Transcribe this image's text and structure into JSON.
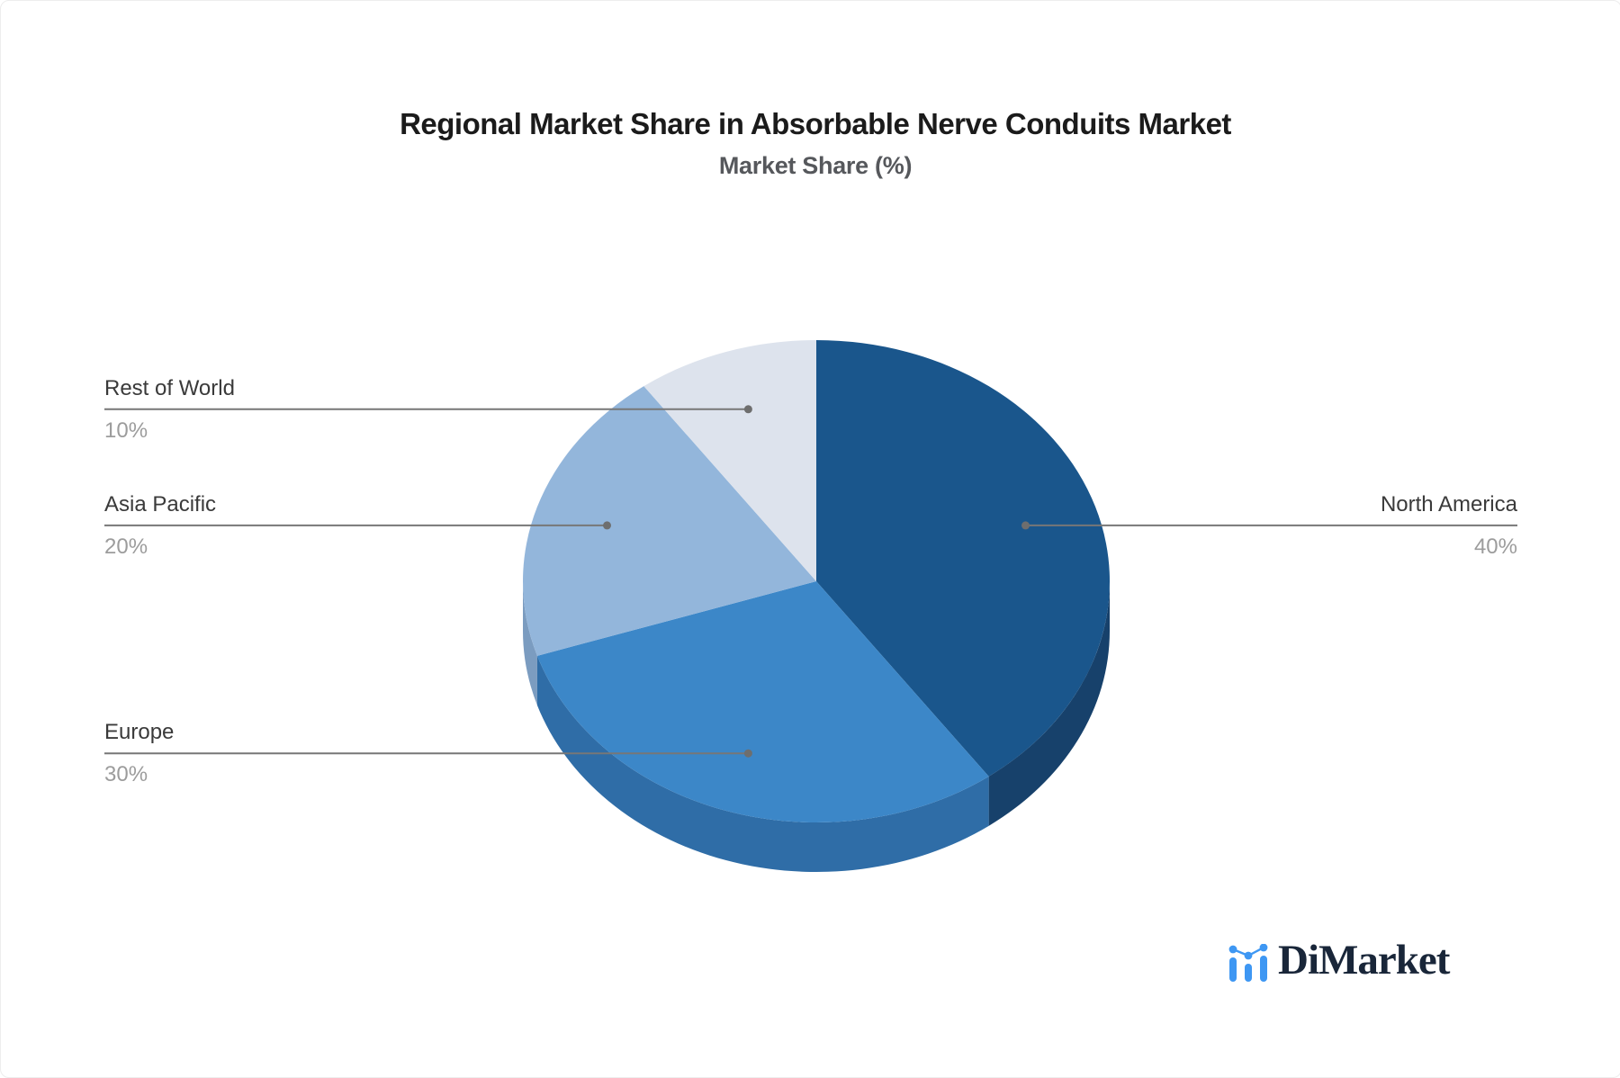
{
  "title": "Regional Market Share in Absorbable Nerve Conduits Market",
  "subtitle": "Market Share (%)",
  "logo": {
    "brand": "DiMarket",
    "icon": "bar-chart-dots-icon"
  },
  "chart_data": {
    "type": "pie",
    "style": "3d",
    "title": "Regional Market Share in Absorbable Nerve Conduits Market",
    "subtitle": "Market Share (%)",
    "unit": "%",
    "start_angle": "12 o'clock, clockwise",
    "legend_position": "callout labels with leader lines",
    "slices": [
      {
        "label": "North America",
        "value": 40,
        "pct_label": "40%",
        "color": "#1A568C",
        "side_color": "#17416B",
        "label_side": "right"
      },
      {
        "label": "Europe",
        "value": 30,
        "pct_label": "30%",
        "color": "#3C87C8",
        "side_color": "#2F6DA7",
        "label_side": "left"
      },
      {
        "label": "Asia Pacific",
        "value": 20,
        "pct_label": "20%",
        "color": "#93B6DB",
        "side_color": "#7B9CC0",
        "label_side": "left"
      },
      {
        "label": "Rest of World",
        "value": 10,
        "pct_label": "10%",
        "color": "#DDE3ED",
        "side_color": "#BCC8DA",
        "label_side": "left"
      }
    ],
    "leader_line_color": "#777777",
    "leader_dot_color": "#6e6e6e",
    "label_name_color": "#3a3a3a",
    "label_value_color": "#9c9c9c"
  }
}
